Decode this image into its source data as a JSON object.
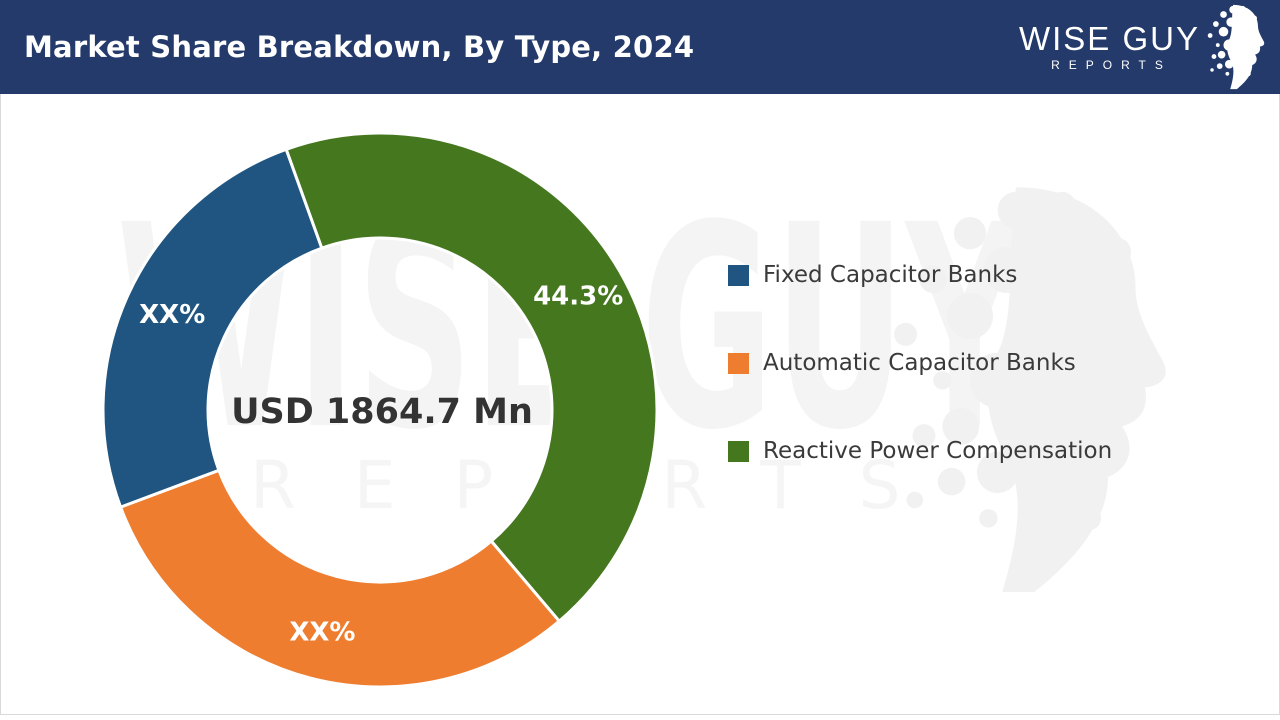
{
  "header": {
    "title": "Market Share Breakdown, By Type, 2024",
    "bg_color": "#233A6B",
    "logo": {
      "line1": "WISE GUY",
      "line2": "REPORTS"
    }
  },
  "watermark": {
    "line1": "WISE GUY",
    "line2": "REPORTS"
  },
  "chart_data": {
    "type": "pie",
    "variant": "donut",
    "title": "Market Share Breakdown, By Type, 2024",
    "center_label": "USD 1864.7 Mn",
    "start_angle_deg": -19.8,
    "segments": [
      {
        "label": "Reactive Power Compensation",
        "value_display": "44.3%",
        "percent": 44.3,
        "color": "#45771F"
      },
      {
        "label": "Automatic Capacitor Banks",
        "value_display": "XX%",
        "percent": 30.5,
        "color": "#EE7D2F"
      },
      {
        "label": "Fixed Capacitor Banks",
        "value_display": "XX%",
        "percent": 25.2,
        "color": "#1F5580"
      }
    ],
    "legend": {
      "position": "right",
      "items": [
        {
          "label": "Fixed Capacitor Banks",
          "color": "#1F5580"
        },
        {
          "label": "Automatic Capacitor Banks",
          "color": "#EE7D2F"
        },
        {
          "label": "Reactive Power Compensation",
          "color": "#45771F"
        }
      ]
    }
  }
}
